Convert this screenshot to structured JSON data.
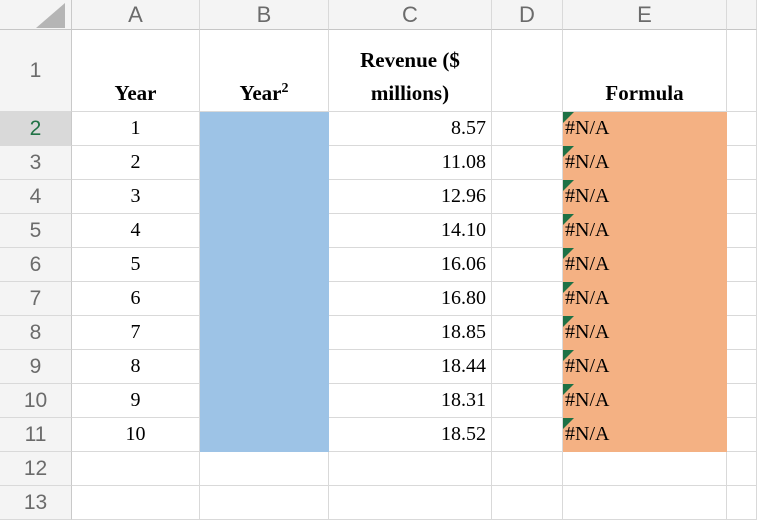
{
  "sheet": {
    "columns": [
      "A",
      "B",
      "C",
      "D",
      "E",
      ""
    ],
    "header_row": {
      "row_num": "1",
      "year": "Year",
      "year2_base": "Year",
      "year2_sup": "2",
      "revenue": "Revenue ($ millions)",
      "formula": "Formula"
    },
    "data_rows": [
      {
        "row_num": "2",
        "year": "1",
        "revenue": "8.57",
        "formula": "#N/A"
      },
      {
        "row_num": "3",
        "year": "2",
        "revenue": "11.08",
        "formula": "#N/A"
      },
      {
        "row_num": "4",
        "year": "3",
        "revenue": "12.96",
        "formula": "#N/A"
      },
      {
        "row_num": "5",
        "year": "4",
        "revenue": "14.10",
        "formula": "#N/A"
      },
      {
        "row_num": "6",
        "year": "5",
        "revenue": "16.06",
        "formula": "#N/A"
      },
      {
        "row_num": "7",
        "year": "6",
        "revenue": "16.80",
        "formula": "#N/A"
      },
      {
        "row_num": "8",
        "year": "7",
        "revenue": "18.85",
        "formula": "#N/A"
      },
      {
        "row_num": "9",
        "year": "8",
        "revenue": "18.44",
        "formula": "#N/A"
      },
      {
        "row_num": "10",
        "year": "9",
        "revenue": "18.31",
        "formula": "#N/A"
      },
      {
        "row_num": "11",
        "year": "10",
        "revenue": "18.52",
        "formula": "#N/A"
      }
    ],
    "empty_rows": [
      {
        "row_num": "12"
      },
      {
        "row_num": "13"
      }
    ],
    "selected_row": "2",
    "colors": {
      "blue_fill": "#9DC3E6",
      "orange_fill": "#F4B183",
      "selection_green": "#217346",
      "selection_bar_green": "#1E7145",
      "error_triangle_green": "#1E7145",
      "header_bg": "#F4F4F4",
      "selected_header_bg": "#D9D9D9",
      "gridline": "#D9D9D9"
    }
  }
}
